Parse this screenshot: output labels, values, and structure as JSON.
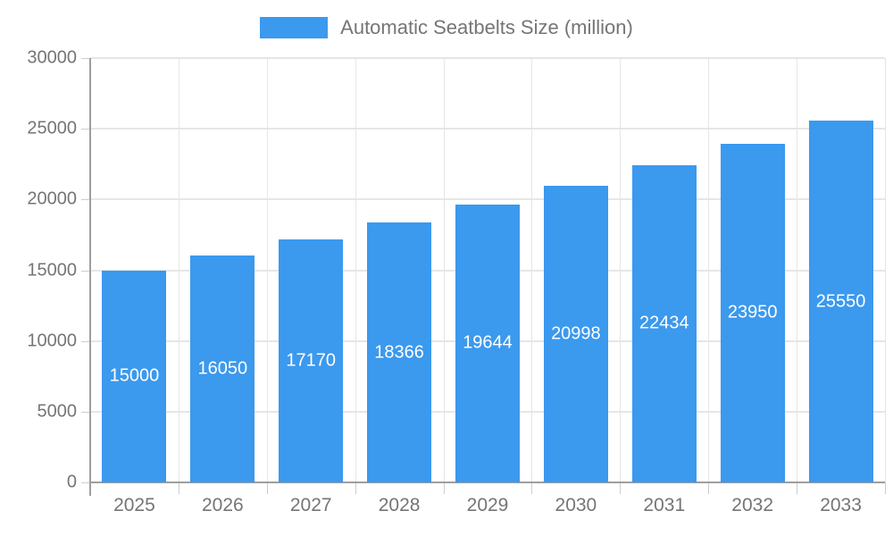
{
  "legend": {
    "label": "Automatic Seatbelts Size (million)"
  },
  "chart_data": {
    "type": "bar",
    "title": "",
    "xlabel": "",
    "ylabel": "",
    "categories": [
      "2025",
      "2026",
      "2027",
      "2028",
      "2029",
      "2030",
      "2031",
      "2032",
      "2033"
    ],
    "series": [
      {
        "name": "Automatic Seatbelts Size (million)",
        "values": [
          15000,
          16050,
          17170,
          18366,
          19644,
          20998,
          22434,
          23950,
          25550
        ]
      }
    ],
    "value_labels_shown": true,
    "ylim": [
      0,
      30000
    ],
    "ytick_interval": 5000,
    "yticks": [
      0,
      5000,
      10000,
      15000,
      20000,
      25000,
      30000
    ],
    "grid": "on",
    "legend_position": "top-center"
  },
  "colors": {
    "bar": "#3B99EE",
    "grid": "#e6e6e6",
    "axis": "#9e9e9e",
    "tick": "#cccccc",
    "text": "#757575",
    "value_label": "#ffffff"
  }
}
